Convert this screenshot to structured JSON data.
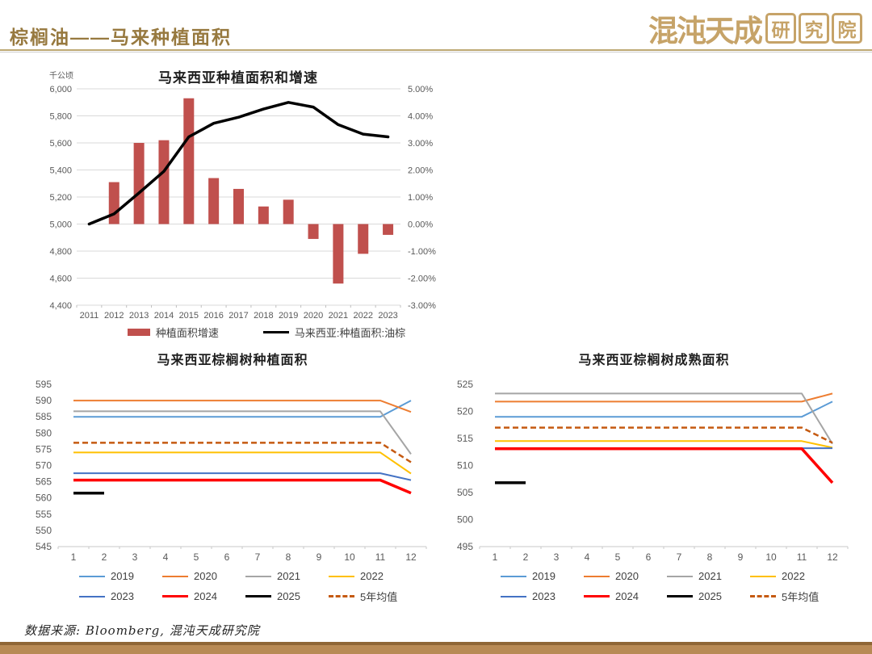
{
  "header": {
    "title": "棕榈油——马来种植面积",
    "logo_main": "混沌天成",
    "logo_box_chars": [
      "研",
      "究",
      "院"
    ],
    "accent_color": "#97793f",
    "logo_color": "#c6a368"
  },
  "footer": {
    "source": "数据来源: Bloomberg, 混沌天成研究院",
    "bar_color": "#b88a55",
    "bar_edge_color": "#8f6636"
  },
  "chart_data": [
    {
      "type": "bar+line",
      "title": "马来西亚种植面积和增速",
      "unit_label": "千公顷",
      "categories": [
        "2011",
        "2012",
        "2013",
        "2014",
        "2015",
        "2016",
        "2017",
        "2018",
        "2019",
        "2020",
        "2021",
        "2022",
        "2023"
      ],
      "left_axis": {
        "min": 4400,
        "max": 6000,
        "step": 200,
        "labels": [
          "6,000",
          "5,800",
          "5,600",
          "5,400",
          "5,200",
          "5,000",
          "4,800",
          "4,600",
          "4,400"
        ]
      },
      "right_axis": {
        "min": -3,
        "max": 5,
        "step": 1,
        "labels": [
          "5.00%",
          "4.00%",
          "3.00%",
          "2.00%",
          "1.00%",
          "0.00%",
          "-1.00%",
          "-2.00%",
          "-3.00%"
        ]
      },
      "grid": true,
      "legend_position": "bottom",
      "series": [
        {
          "name": "种植面积增速",
          "kind": "bar",
          "axis": "right",
          "color": "#c0504d",
          "values": [
            null,
            1.55,
            3.0,
            3.1,
            4.65,
            1.7,
            1.3,
            0.65,
            0.9,
            -0.55,
            -2.2,
            -1.1,
            -0.4
          ]
        },
        {
          "name": "马来西亚:种植面积:油棕",
          "kind": "line",
          "axis": "left",
          "color": "#000000",
          "width": 3.5,
          "values": [
            5000,
            5075,
            5230,
            5390,
            5645,
            5745,
            5790,
            5850,
            5900,
            5865,
            5735,
            5665,
            5645
          ]
        }
      ]
    },
    {
      "type": "line",
      "title": "马来西亚棕榈树种植面积",
      "x": [
        "1",
        "2",
        "3",
        "4",
        "5",
        "6",
        "7",
        "8",
        "9",
        "10",
        "11",
        "12"
      ],
      "ylim": [
        545,
        595
      ],
      "ystep": 5,
      "grid": false,
      "legend_position": "bottom",
      "series": [
        {
          "name": "2019",
          "color": "#5b9bd5",
          "width": 2,
          "values": [
            585,
            585,
            585,
            585,
            585,
            585,
            585,
            585,
            585,
            585,
            585,
            590
          ]
        },
        {
          "name": "2020",
          "color": "#ed7d31",
          "width": 2,
          "values": [
            590,
            590,
            590,
            590,
            590,
            590,
            590,
            590,
            590,
            590,
            590,
            586.5
          ]
        },
        {
          "name": "2021",
          "color": "#a5a5a5",
          "width": 2,
          "values": [
            586.7,
            586.7,
            586.7,
            586.7,
            586.7,
            586.7,
            586.7,
            586.7,
            586.7,
            586.7,
            586.7,
            573.5
          ]
        },
        {
          "name": "2022",
          "color": "#ffc000",
          "width": 2,
          "values": [
            574,
            574,
            574,
            574,
            574,
            574,
            574,
            574,
            574,
            574,
            574,
            567.5
          ]
        },
        {
          "name": "2023",
          "color": "#4472c4",
          "width": 2,
          "values": [
            567.6,
            567.6,
            567.6,
            567.6,
            567.6,
            567.6,
            567.6,
            567.6,
            567.6,
            567.6,
            567.6,
            565.5
          ]
        },
        {
          "name": "2024",
          "color": "#ff0000",
          "width": 3.5,
          "values": [
            565.5,
            565.5,
            565.5,
            565.5,
            565.5,
            565.5,
            565.5,
            565.5,
            565.5,
            565.5,
            565.5,
            561.5
          ]
        },
        {
          "name": "2025",
          "color": "#000000",
          "width": 3.5,
          "values": [
            561.5,
            561.5,
            null,
            null,
            null,
            null,
            null,
            null,
            null,
            null,
            null,
            null
          ]
        },
        {
          "name": "5年均值",
          "color": "#c55a11",
          "width": 2.5,
          "dash": "7 4",
          "values": [
            577,
            577,
            577,
            577,
            577,
            577,
            577,
            577,
            577,
            577,
            577,
            571
          ]
        }
      ]
    },
    {
      "type": "line",
      "title": "马来西亚棕榈树成熟面积",
      "x": [
        "1",
        "2",
        "3",
        "4",
        "5",
        "6",
        "7",
        "8",
        "9",
        "10",
        "11",
        "12"
      ],
      "ylim": [
        495,
        525
      ],
      "ystep": 5,
      "grid": false,
      "legend_position": "bottom",
      "series": [
        {
          "name": "2019",
          "color": "#5b9bd5",
          "width": 2,
          "values": [
            519,
            519,
            519,
            519,
            519,
            519,
            519,
            519,
            519,
            519,
            519,
            521.8
          ]
        },
        {
          "name": "2020",
          "color": "#ed7d31",
          "width": 2,
          "values": [
            521.8,
            521.8,
            521.8,
            521.8,
            521.8,
            521.8,
            521.8,
            521.8,
            521.8,
            521.8,
            521.8,
            523.3
          ]
        },
        {
          "name": "2021",
          "color": "#a5a5a5",
          "width": 2,
          "values": [
            523.3,
            523.3,
            523.3,
            523.3,
            523.3,
            523.3,
            523.3,
            523.3,
            523.3,
            523.3,
            523.3,
            514.0
          ]
        },
        {
          "name": "2022",
          "color": "#ffc000",
          "width": 2,
          "values": [
            514.5,
            514.5,
            514.5,
            514.5,
            514.5,
            514.5,
            514.5,
            514.5,
            514.5,
            514.5,
            514.5,
            513.3
          ]
        },
        {
          "name": "2023",
          "color": "#4472c4",
          "width": 2,
          "values": [
            513.2,
            513.2,
            513.2,
            513.2,
            513.2,
            513.2,
            513.2,
            513.2,
            513.2,
            513.2,
            513.2,
            513.2
          ]
        },
        {
          "name": "2024",
          "color": "#ff0000",
          "width": 3.5,
          "values": [
            513.1,
            513.1,
            513.1,
            513.1,
            513.1,
            513.1,
            513.1,
            513.1,
            513.1,
            513.1,
            513.1,
            506.8
          ]
        },
        {
          "name": "2025",
          "color": "#000000",
          "width": 3.5,
          "values": [
            506.8,
            506.8,
            null,
            null,
            null,
            null,
            null,
            null,
            null,
            null,
            null,
            null
          ]
        },
        {
          "name": "5年均值",
          "color": "#c55a11",
          "width": 2.5,
          "dash": "7 4",
          "values": [
            517,
            517,
            517,
            517,
            517,
            517,
            517,
            517,
            517,
            517,
            517,
            514.2
          ]
        }
      ]
    }
  ]
}
